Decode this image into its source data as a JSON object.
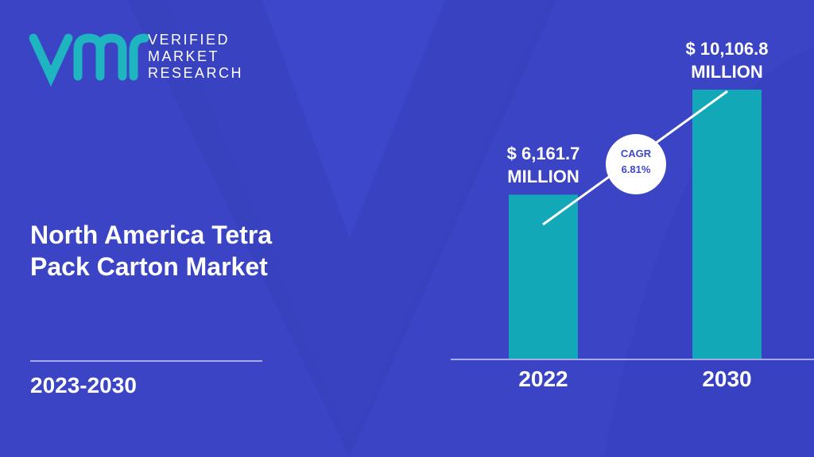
{
  "brand": {
    "lines": [
      "VERIFIED",
      "MARKET",
      "RESEARCH"
    ]
  },
  "title": "North America Tetra Pack Carton Market",
  "period": "2023-2030",
  "cagr": {
    "label": "CAGR",
    "value": "6.81%"
  },
  "chart_data": {
    "type": "bar",
    "categories": [
      "2022",
      "2030"
    ],
    "values": [
      6161.7,
      10106.8
    ],
    "value_labels": [
      "$ 6,161.7 MILLION",
      "$ 10,106.8 MILLION"
    ],
    "color": "#13a8b7"
  }
}
